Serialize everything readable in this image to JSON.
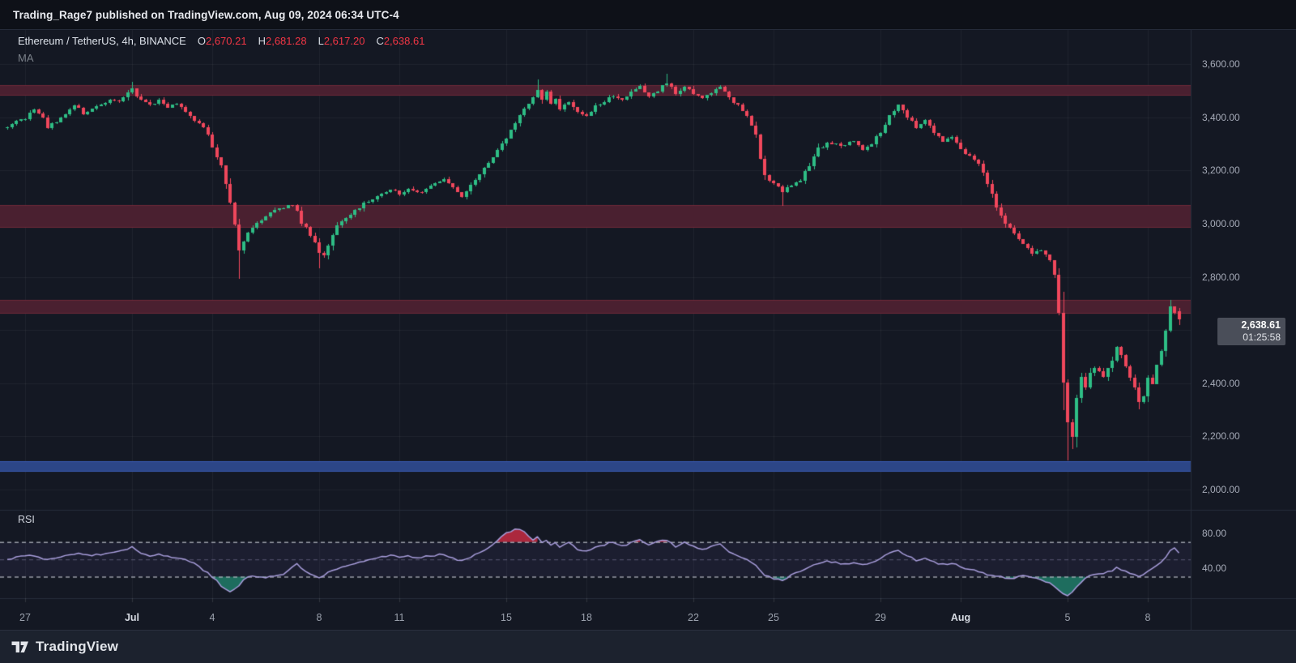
{
  "header": {
    "published_line": "Trading_Rage7 published on TradingView.com, Aug 09, 2024 06:34 UTC-4"
  },
  "legend": {
    "symbol": "Ethereum / TetherUS, 4h, BINANCE",
    "ohlc": [
      {
        "label": "O",
        "value": "2,670.21"
      },
      {
        "label": "H",
        "value": "2,681.28"
      },
      {
        "label": "L",
        "value": "2,617.20"
      },
      {
        "label": "C",
        "value": "2,638.61"
      }
    ],
    "indicator": "MA"
  },
  "price_axis": {
    "labels": [
      {
        "text": "3,600.00",
        "price": 3600
      },
      {
        "text": "3,400.00",
        "price": 3400
      },
      {
        "text": "3,200.00",
        "price": 3200
      },
      {
        "text": "3,000.00",
        "price": 3000
      },
      {
        "text": "2,800.00",
        "price": 2800
      },
      {
        "text": "2,400.00",
        "price": 2400
      },
      {
        "text": "2,200.00",
        "price": 2200
      },
      {
        "text": "2,000.00",
        "price": 2000
      }
    ],
    "last_price": "2,638.61",
    "countdown": "01:25:58"
  },
  "rsi_axis": {
    "labels": [
      {
        "text": "80.00",
        "value": 80
      },
      {
        "text": "40.00",
        "value": 40
      }
    ]
  },
  "time_axis": {
    "ticks": [
      {
        "label": "27",
        "day": 0,
        "bold": false
      },
      {
        "label": "Jul",
        "day": 4,
        "bold": true
      },
      {
        "label": "4",
        "day": 7,
        "bold": false
      },
      {
        "label": "8",
        "day": 11,
        "bold": false
      },
      {
        "label": "11",
        "day": 14,
        "bold": false
      },
      {
        "label": "15",
        "day": 18,
        "bold": false
      },
      {
        "label": "18",
        "day": 21,
        "bold": false
      },
      {
        "label": "22",
        "day": 25,
        "bold": false
      },
      {
        "label": "25",
        "day": 28,
        "bold": false
      },
      {
        "label": "29",
        "day": 32,
        "bold": false
      },
      {
        "label": "Aug",
        "day": 35,
        "bold": true
      },
      {
        "label": "5",
        "day": 39,
        "bold": false
      },
      {
        "label": "8",
        "day": 42,
        "bold": false
      }
    ]
  },
  "footer": {
    "brand": "TradingView"
  },
  "colors": {
    "up": "#2ebd85",
    "down": "#f0475c",
    "band_red": "#4a2030",
    "band_red_edge": "rgba(246,70,93,0.22)",
    "band_blue": "#2c4687",
    "band_blue_edge": "rgba(80,130,255,0.35)",
    "rsi_line": "#a89ddb",
    "rsi_zone": "rgba(130,100,200,0.08)",
    "rsi_over_fill": "rgba(198,44,66,0.85)",
    "rsi_under_fill": "rgba(32,125,105,0.85)",
    "grid": "rgba(255,255,255,0.05)",
    "separator": "#262c3a",
    "ohlc_value": "#f23645"
  },
  "chart_data": {
    "type": "candlestick",
    "symbol": "ETHUSDT",
    "exchange": "BINANCE",
    "interval": "4h",
    "visible_range": "Jun 26 2024 08:00 - Aug 09 2024 08:00",
    "candles_per_day": 6,
    "first_candle_index": -4,
    "last_candle_index": 259,
    "price_axis_ticks": [
      3600,
      3400,
      3200,
      3000,
      2800,
      2600,
      2400,
      2200,
      2000
    ],
    "last_candle": {
      "open": 2670.21,
      "high": 2681.28,
      "low": 2617.2,
      "close": 2638.61
    },
    "zones": [
      {
        "kind": "resistance",
        "price_from": 3480,
        "price_to": 3521
      },
      {
        "kind": "resistance",
        "price_from": 2985,
        "price_to": 3070
      },
      {
        "kind": "resistance",
        "price_from": 2660,
        "price_to": 2712
      },
      {
        "kind": "support",
        "price_from": 2068,
        "price_to": 2108
      }
    ],
    "price_keyframes": [
      [
        -4,
        3365
      ],
      [
        -2,
        3385
      ],
      [
        0,
        3395
      ],
      [
        2,
        3435
      ],
      [
        4,
        3395
      ],
      [
        5,
        3365
      ],
      [
        7,
        3385
      ],
      [
        9,
        3415
      ],
      [
        11,
        3445
      ],
      [
        13,
        3415
      ],
      [
        15,
        3435
      ],
      [
        17,
        3445
      ],
      [
        19,
        3470
      ],
      [
        21,
        3455
      ],
      [
        23,
        3490
      ],
      [
        24,
        3508
      ],
      [
        25,
        3480
      ],
      [
        26,
        3465
      ],
      [
        28,
        3448
      ],
      [
        30,
        3465
      ],
      [
        32,
        3438
      ],
      [
        34,
        3452
      ],
      [
        36,
        3420
      ],
      [
        38,
        3390
      ],
      [
        40,
        3358
      ],
      [
        41,
        3330
      ],
      [
        42,
        3292
      ],
      [
        43,
        3252
      ],
      [
        44,
        3218
      ],
      [
        45,
        3152
      ],
      [
        46,
        3085
      ],
      [
        47,
        2992
      ],
      [
        48,
        2902
      ],
      [
        49,
        2928
      ],
      [
        50,
        2962
      ],
      [
        52,
        3002
      ],
      [
        54,
        3032
      ],
      [
        56,
        3052
      ],
      [
        58,
        3062
      ],
      [
        60,
        3072
      ],
      [
        61,
        3042
      ],
      [
        62,
        3002
      ],
      [
        63,
        2982
      ],
      [
        64,
        2952
      ],
      [
        65,
        2930
      ],
      [
        66,
        2892
      ],
      [
        67,
        2878
      ],
      [
        68,
        2920
      ],
      [
        69,
        2958
      ],
      [
        70,
        2992
      ],
      [
        72,
        3022
      ],
      [
        74,
        3052
      ],
      [
        76,
        3072
      ],
      [
        78,
        3092
      ],
      [
        80,
        3112
      ],
      [
        82,
        3132
      ],
      [
        84,
        3112
      ],
      [
        86,
        3132
      ],
      [
        88,
        3112
      ],
      [
        90,
        3132
      ],
      [
        92,
        3152
      ],
      [
        94,
        3162
      ],
      [
        96,
        3140
      ],
      [
        98,
        3102
      ],
      [
        100,
        3142
      ],
      [
        102,
        3188
      ],
      [
        104,
        3232
      ],
      [
        106,
        3272
      ],
      [
        108,
        3322
      ],
      [
        110,
        3382
      ],
      [
        112,
        3432
      ],
      [
        114,
        3472
      ],
      [
        115,
        3502
      ],
      [
        116,
        3472
      ],
      [
        117,
        3492
      ],
      [
        118,
        3452
      ],
      [
        119,
        3472
      ],
      [
        120,
        3432
      ],
      [
        122,
        3462
      ],
      [
        124,
        3422
      ],
      [
        126,
        3402
      ],
      [
        128,
        3442
      ],
      [
        130,
        3462
      ],
      [
        132,
        3482
      ],
      [
        134,
        3462
      ],
      [
        136,
        3492
      ],
      [
        138,
        3512
      ],
      [
        140,
        3482
      ],
      [
        142,
        3502
      ],
      [
        144,
        3532
      ],
      [
        146,
        3492
      ],
      [
        148,
        3512
      ],
      [
        150,
        3492
      ],
      [
        152,
        3472
      ],
      [
        154,
        3492
      ],
      [
        156,
        3512
      ],
      [
        158,
        3472
      ],
      [
        160,
        3442
      ],
      [
        162,
        3402
      ],
      [
        164,
        3332
      ],
      [
        165,
        3242
      ],
      [
        166,
        3182
      ],
      [
        167,
        3162
      ],
      [
        168,
        3150
      ],
      [
        170,
        3122
      ],
      [
        172,
        3142
      ],
      [
        174,
        3162
      ],
      [
        176,
        3222
      ],
      [
        178,
        3282
      ],
      [
        180,
        3302
      ],
      [
        183,
        3292
      ],
      [
        186,
        3312
      ],
      [
        188,
        3282
      ],
      [
        190,
        3302
      ],
      [
        192,
        3342
      ],
      [
        194,
        3402
      ],
      [
        196,
        3442
      ],
      [
        198,
        3402
      ],
      [
        200,
        3362
      ],
      [
        202,
        3392
      ],
      [
        204,
        3342
      ],
      [
        206,
        3312
      ],
      [
        208,
        3332
      ],
      [
        210,
        3282
      ],
      [
        212,
        3252
      ],
      [
        214,
        3222
      ],
      [
        216,
        3152
      ],
      [
        218,
        3062
      ],
      [
        220,
        3002
      ],
      [
        222,
        2962
      ],
      [
        224,
        2922
      ],
      [
        226,
        2892
      ],
      [
        228,
        2902
      ],
      [
        230,
        2862
      ],
      [
        231,
        2802
      ],
      [
        232,
        2662
      ],
      [
        233,
        2402
      ],
      [
        234,
        2252
      ],
      [
        235,
        2192
      ],
      [
        236,
        2342
      ],
      [
        237,
        2422
      ],
      [
        238,
        2382
      ],
      [
        239,
        2432
      ],
      [
        240,
        2462
      ],
      [
        242,
        2422
      ],
      [
        244,
        2482
      ],
      [
        245,
        2532
      ],
      [
        246,
        2502
      ],
      [
        247,
        2462
      ],
      [
        248,
        2422
      ],
      [
        249,
        2382
      ],
      [
        250,
        2322
      ],
      [
        251,
        2352
      ],
      [
        252,
        2422
      ],
      [
        253,
        2402
      ],
      [
        254,
        2462
      ],
      [
        255,
        2522
      ],
      [
        256,
        2602
      ],
      [
        257,
        2682
      ],
      [
        258,
        2662
      ],
      [
        259,
        2638.61
      ]
    ],
    "wick_overrides": [
      {
        "i": 24,
        "high": 3532
      },
      {
        "i": 48,
        "low": 2792
      },
      {
        "i": 66,
        "low": 2832
      },
      {
        "i": 115,
        "high": 3542
      },
      {
        "i": 144,
        "high": 3562
      },
      {
        "i": 170,
        "low": 3066
      },
      {
        "i": 233,
        "low": 2300
      },
      {
        "i": 234,
        "low": 2111
      },
      {
        "i": 235,
        "low": 2152
      },
      {
        "i": 250,
        "low": 2302
      },
      {
        "i": 257,
        "high": 2712
      }
    ],
    "rsi": {
      "label": "RSI",
      "levels": {
        "overbought": 70,
        "middle": 50,
        "oversold": 30
      },
      "axis_labels": [
        80,
        40
      ],
      "keyframes": [
        [
          -4,
          50
        ],
        [
          0,
          55
        ],
        [
          3,
          52
        ],
        [
          6,
          50
        ],
        [
          9,
          54
        ],
        [
          12,
          58
        ],
        [
          15,
          54
        ],
        [
          18,
          57
        ],
        [
          21,
          60
        ],
        [
          24,
          64
        ],
        [
          26,
          57
        ],
        [
          28,
          54
        ],
        [
          30,
          56
        ],
        [
          33,
          52
        ],
        [
          36,
          50
        ],
        [
          38,
          46
        ],
        [
          40,
          38
        ],
        [
          42,
          30
        ],
        [
          43,
          25
        ],
        [
          44,
          19
        ],
        [
          45,
          15
        ],
        [
          46,
          13
        ],
        [
          47,
          16
        ],
        [
          48,
          20
        ],
        [
          49,
          26
        ],
        [
          50,
          29
        ],
        [
          51,
          31
        ],
        [
          52,
          30
        ],
        [
          54,
          29
        ],
        [
          56,
          31
        ],
        [
          58,
          33
        ],
        [
          60,
          41
        ],
        [
          61,
          45
        ],
        [
          62,
          39
        ],
        [
          63,
          36
        ],
        [
          64,
          33
        ],
        [
          66,
          29
        ],
        [
          67,
          31
        ],
        [
          68,
          35
        ],
        [
          70,
          39
        ],
        [
          72,
          43
        ],
        [
          74,
          46
        ],
        [
          76,
          48
        ],
        [
          78,
          51
        ],
        [
          80,
          53
        ],
        [
          82,
          55
        ],
        [
          84,
          52
        ],
        [
          86,
          54
        ],
        [
          88,
          51
        ],
        [
          90,
          53
        ],
        [
          92,
          55
        ],
        [
          94,
          56
        ],
        [
          96,
          52
        ],
        [
          98,
          48
        ],
        [
          100,
          53
        ],
        [
          102,
          58
        ],
        [
          104,
          64
        ],
        [
          106,
          72
        ],
        [
          108,
          80
        ],
        [
          110,
          85
        ],
        [
          112,
          82
        ],
        [
          113,
          76
        ],
        [
          114,
          72
        ],
        [
          115,
          76
        ],
        [
          116,
          70
        ],
        [
          117,
          73
        ],
        [
          118,
          67
        ],
        [
          119,
          70
        ],
        [
          120,
          64
        ],
        [
          122,
          69
        ],
        [
          124,
          62
        ],
        [
          126,
          59
        ],
        [
          128,
          64
        ],
        [
          130,
          67
        ],
        [
          132,
          70
        ],
        [
          134,
          65
        ],
        [
          136,
          69
        ],
        [
          138,
          72
        ],
        [
          140,
          67
        ],
        [
          142,
          70
        ],
        [
          144,
          73
        ],
        [
          146,
          65
        ],
        [
          148,
          69
        ],
        [
          150,
          65
        ],
        [
          152,
          61
        ],
        [
          154,
          64
        ],
        [
          156,
          67
        ],
        [
          158,
          59
        ],
        [
          160,
          54
        ],
        [
          162,
          49
        ],
        [
          164,
          43
        ],
        [
          165,
          37
        ],
        [
          166,
          32
        ],
        [
          167,
          30
        ],
        [
          168,
          28
        ],
        [
          170,
          26
        ],
        [
          172,
          32
        ],
        [
          174,
          36
        ],
        [
          176,
          41
        ],
        [
          178,
          45
        ],
        [
          180,
          48
        ],
        [
          182,
          46
        ],
        [
          184,
          44
        ],
        [
          186,
          47
        ],
        [
          188,
          44
        ],
        [
          190,
          46
        ],
        [
          192,
          51
        ],
        [
          194,
          57
        ],
        [
          196,
          61
        ],
        [
          198,
          54
        ],
        [
          200,
          49
        ],
        [
          202,
          52
        ],
        [
          204,
          47
        ],
        [
          206,
          44
        ],
        [
          208,
          46
        ],
        [
          210,
          41
        ],
        [
          212,
          38
        ],
        [
          214,
          36
        ],
        [
          216,
          32
        ],
        [
          218,
          30
        ],
        [
          220,
          29
        ],
        [
          222,
          28
        ],
        [
          224,
          31
        ],
        [
          226,
          29
        ],
        [
          228,
          26
        ],
        [
          230,
          22
        ],
        [
          232,
          15
        ],
        [
          233,
          11
        ],
        [
          234,
          9
        ],
        [
          235,
          13
        ],
        [
          236,
          18
        ],
        [
          237,
          24
        ],
        [
          238,
          28
        ],
        [
          239,
          31
        ],
        [
          240,
          32
        ],
        [
          242,
          34
        ],
        [
          244,
          37
        ],
        [
          245,
          40
        ],
        [
          246,
          38
        ],
        [
          248,
          34
        ],
        [
          250,
          31
        ],
        [
          251,
          33
        ],
        [
          252,
          36
        ],
        [
          254,
          43
        ],
        [
          256,
          52
        ],
        [
          257,
          60
        ],
        [
          258,
          64
        ],
        [
          259,
          57
        ]
      ]
    }
  }
}
